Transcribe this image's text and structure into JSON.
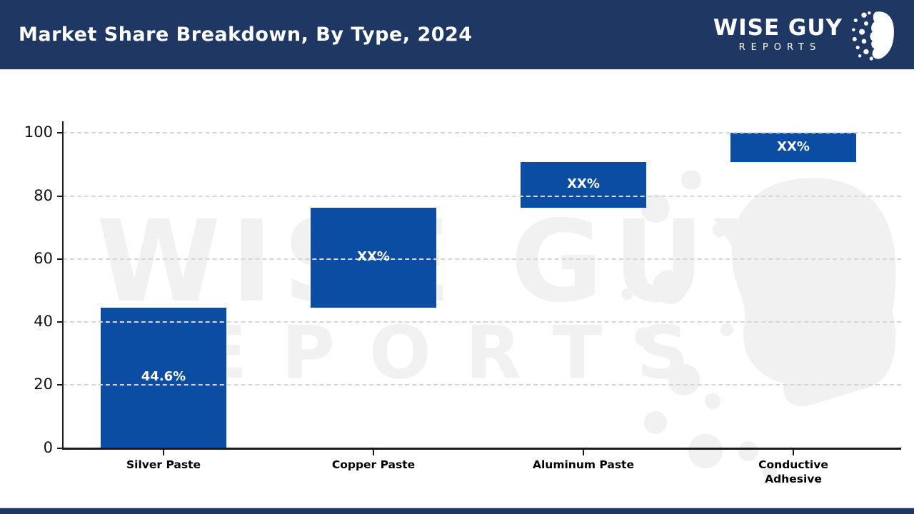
{
  "header": {
    "title": "Market Share Breakdown, By Type, 2024",
    "logo": {
      "line1": "WISE GUY",
      "line2": "REPORTS"
    }
  },
  "watermark": {
    "line1": "WISE GUY",
    "line2": "REPORTS"
  },
  "chart_data": {
    "type": "bar",
    "subtype": "waterfall",
    "title": "Market Share Breakdown, By Type, 2024",
    "categories": [
      "Silver Paste",
      "Copper Paste",
      "Aluminum Paste",
      "Conductive Adhesive"
    ],
    "series": [
      {
        "name": "Market Share (%)",
        "segments": [
          {
            "category": "Silver Paste",
            "start": 0,
            "end": 44.6,
            "label": "44.6%"
          },
          {
            "category": "Copper Paste",
            "start": 44.6,
            "end": 76.2,
            "label": "XX%"
          },
          {
            "category": "Aluminum Paste",
            "start": 76.2,
            "end": 90.8,
            "label": "XX%"
          },
          {
            "category": "Conductive Adhesive",
            "start": 90.8,
            "end": 100,
            "label": "XX%"
          }
        ]
      }
    ],
    "xlabel": "",
    "ylabel": "",
    "ylim": [
      0,
      100
    ],
    "yticks": [
      0,
      20,
      40,
      60,
      80,
      100
    ],
    "grid": "horizontal-dashed",
    "legend": "none",
    "bar_label_color": "#ffffff"
  },
  "colors": {
    "header_bg": "#1f3863",
    "footer_bg": "#1f3863",
    "bar": "#0b4da2",
    "axis": "#1a1a1a",
    "grid": "#d7d7d7",
    "watermark": "#f1f1f1"
  }
}
